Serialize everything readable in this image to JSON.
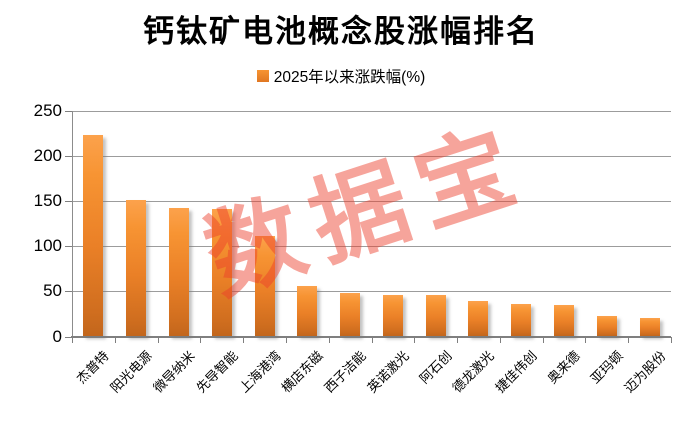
{
  "title": "钙钛矿电池概念股涨幅排名",
  "legend": {
    "label": "2025年以来涨跌幅(%)",
    "swatch_color": "#E87E2B"
  },
  "watermark": "数据宝",
  "colors": {
    "bar": "#ED7D31",
    "watermark": "#EB3E2A",
    "gridline": "#9C9C9C",
    "axis": "#7F7F7F",
    "text": "#000000"
  },
  "chart_data": {
    "type": "bar",
    "title": "钙钛矿电池概念股涨幅排名",
    "legend_entries": [
      "2025年以来涨跌幅(%)"
    ],
    "legend_position": "top",
    "categories": [
      "杰普特",
      "阳光电源",
      "微导纳米",
      "先导智能",
      "上海港湾",
      "横店东磁",
      "西子洁能",
      "英诺激光",
      "阿石创",
      "德龙激光",
      "捷佳伟创",
      "奥来德",
      "亚玛顿",
      "迈为股份"
    ],
    "values": [
      223,
      151,
      143,
      141,
      111,
      56,
      48,
      46,
      46,
      39,
      36,
      35,
      23,
      21
    ],
    "xlabel": "",
    "ylabel": "",
    "ylim": [
      0,
      250
    ],
    "yticks": [
      0,
      50,
      100,
      150,
      200,
      250
    ],
    "grid": true,
    "bar_color": "#ED7D31",
    "unit": "%"
  }
}
